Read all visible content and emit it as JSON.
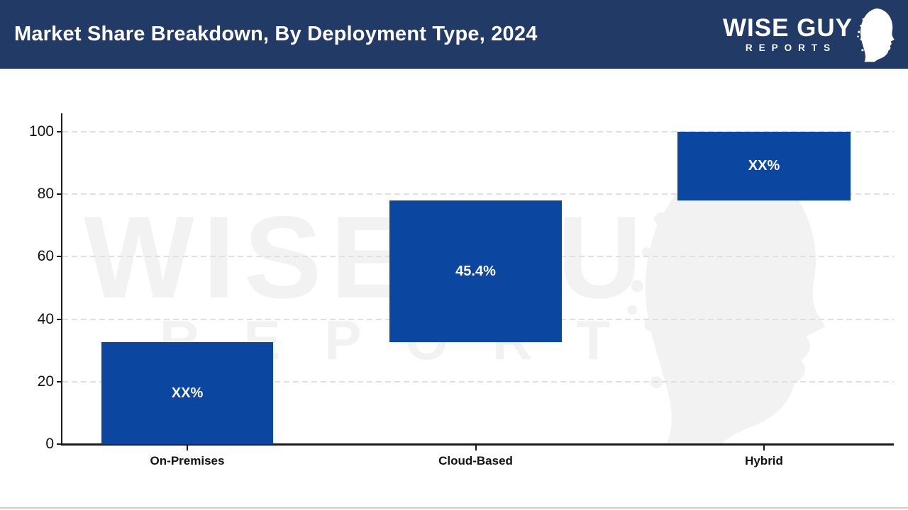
{
  "header": {
    "title": "Market Share Breakdown, By Deployment Type, 2024",
    "logo": {
      "line1": "WISE GUY",
      "line2": "REPORTS",
      "icon": "dotted-face-profile"
    }
  },
  "watermark": {
    "line1": "WISE GUY",
    "line2": "REPORTS",
    "icon": "dotted-face-profile"
  },
  "chart_data": {
    "type": "bar",
    "subtype": "waterfall",
    "title": "Market Share Breakdown, By Deployment Type, 2024",
    "categories": [
      "On-Premises",
      "Cloud-Based",
      "Hybrid"
    ],
    "segments": [
      {
        "category": "On-Premises",
        "start": 0,
        "end": 32.6,
        "label": "XX%"
      },
      {
        "category": "Cloud-Based",
        "start": 32.6,
        "end": 78.0,
        "label": "45.4%"
      },
      {
        "category": "Hybrid",
        "start": 78.0,
        "end": 100,
        "label": "XX%"
      }
    ],
    "xlabel": "",
    "ylabel": "",
    "ylim": [
      0,
      100
    ],
    "yticks": [
      0,
      20,
      40,
      60,
      80,
      100
    ],
    "grid": "horizontal-dashed",
    "legend": null
  },
  "colors": {
    "header_bg": "#213a66",
    "bar": "#0b47a0",
    "gridline": "#e0e0e0",
    "axis": "#1a1a1a",
    "watermark": "#f2f2f2",
    "value_label": "#ffffff",
    "bottom_rule": "#cccccc"
  }
}
